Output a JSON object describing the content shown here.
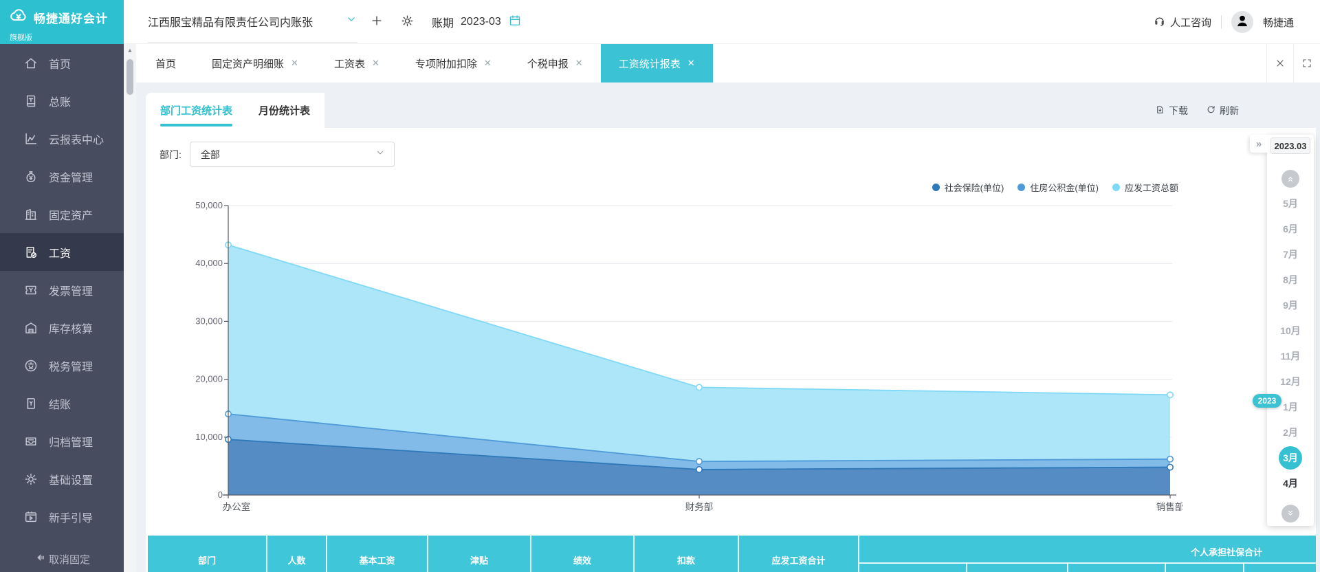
{
  "topbar": {
    "logo_title": "畅捷通好会计",
    "logo_subtitle": "旗舰版",
    "company": "江西服宝精品有限责任公司内账张",
    "period_label": "账期",
    "period_value": "2023-03",
    "consult": "人工咨询",
    "user": "畅捷通"
  },
  "sidebar": {
    "items": [
      {
        "label": "首页",
        "icon": "home",
        "active": false
      },
      {
        "label": "总账",
        "icon": "ledger",
        "active": false
      },
      {
        "label": "云报表中心",
        "icon": "report",
        "active": false
      },
      {
        "label": "资金管理",
        "icon": "funds",
        "active": false
      },
      {
        "label": "固定资产",
        "icon": "asset",
        "active": false
      },
      {
        "label": "工资",
        "icon": "salary",
        "active": true
      },
      {
        "label": "发票管理",
        "icon": "invoice",
        "active": false
      },
      {
        "label": "库存核算",
        "icon": "inventory",
        "active": false
      },
      {
        "label": "税务管理",
        "icon": "tax",
        "active": false
      },
      {
        "label": "结账",
        "icon": "closing",
        "active": false
      },
      {
        "label": "归档管理",
        "icon": "archive",
        "active": false
      },
      {
        "label": "基础设置",
        "icon": "settings",
        "active": false
      },
      {
        "label": "新手引导",
        "icon": "guide",
        "active": false
      }
    ],
    "unpin": "取消固定"
  },
  "tabs": {
    "items": [
      {
        "label": "首页",
        "closable": false,
        "active": false
      },
      {
        "label": "固定资产明细账",
        "closable": true,
        "active": false
      },
      {
        "label": "工资表",
        "closable": true,
        "active": false
      },
      {
        "label": "专项附加扣除",
        "closable": true,
        "active": false
      },
      {
        "label": "个税申报",
        "closable": true,
        "active": false
      },
      {
        "label": "工资统计报表",
        "closable": true,
        "active": true
      }
    ]
  },
  "subtabs": [
    {
      "label": "部门工资统计表",
      "active": true
    },
    {
      "label": "月份统计表",
      "active": false
    }
  ],
  "toolbar": {
    "download": "下载",
    "refresh": "刷新"
  },
  "filter": {
    "label": "部门:",
    "value": "全部"
  },
  "chart_data": {
    "type": "area",
    "categories": [
      "办公室",
      "财务部",
      "销售部"
    ],
    "series": [
      {
        "name": "社会保险(单位)",
        "color": "#2e79b9",
        "fill": "#5187c0",
        "values": [
          9600,
          4400,
          4800
        ]
      },
      {
        "name": "住房公积金(单位)",
        "color": "#4f9ad8",
        "fill": "#7db6e6",
        "values": [
          14000,
          5800,
          6200
        ]
      },
      {
        "name": "应发工资总额",
        "color": "#7fd9f6",
        "fill": "#a5e3f8",
        "values": [
          43200,
          18600,
          17300
        ]
      }
    ],
    "ylim": [
      0,
      50000
    ],
    "yticks": [
      0,
      10000,
      20000,
      30000,
      40000,
      50000
    ],
    "grid": true,
    "legend_position": "top-right"
  },
  "table": {
    "columns": [
      "部门",
      "人数",
      "基本工资",
      "津贴",
      "绩效",
      "扣款",
      "应发工资合计"
    ],
    "group_header": "个人承担社保合计"
  },
  "month_panel": {
    "current": "2023.03",
    "year_badge": "2023",
    "months": [
      {
        "label": "5月",
        "state": "disabled"
      },
      {
        "label": "6月",
        "state": "disabled"
      },
      {
        "label": "7月",
        "state": "disabled"
      },
      {
        "label": "8月",
        "state": "disabled"
      },
      {
        "label": "9月",
        "state": "disabled"
      },
      {
        "label": "10月",
        "state": "disabled"
      },
      {
        "label": "11月",
        "state": "disabled"
      },
      {
        "label": "12月",
        "state": "disabled"
      },
      {
        "label": "1月",
        "state": "disabled"
      },
      {
        "label": "2月",
        "state": "disabled"
      },
      {
        "label": "3月",
        "state": "selected"
      },
      {
        "label": "4月",
        "state": "normal"
      }
    ]
  }
}
